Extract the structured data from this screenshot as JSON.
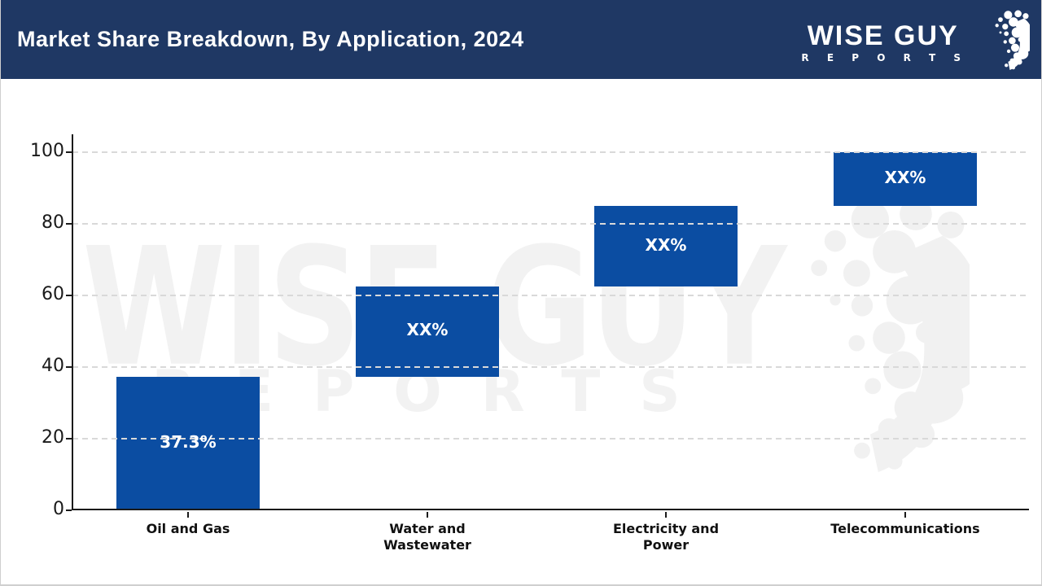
{
  "header": {
    "title": "Market Share Breakdown, By Application, 2024",
    "logo": {
      "primary": "WISE GUY",
      "secondary": "R E P O R T S"
    }
  },
  "watermark": {
    "line1": "WISE GUY",
    "line2": "REPORTS"
  },
  "chart_data": {
    "type": "bar",
    "subtype": "waterfall",
    "title": "Market Share Breakdown, By Application, 2024",
    "categories": [
      [
        "Oil and Gas"
      ],
      [
        "Water and",
        "Wastewater"
      ],
      [
        "Electricity and",
        "Power"
      ],
      [
        "Telecommunications"
      ]
    ],
    "series": [
      {
        "name": "Market Share (%)",
        "segments": [
          {
            "category": "Oil and Gas",
            "start": 0,
            "end": 37.3,
            "label": "37.3%"
          },
          {
            "category": "Water and Wastewater",
            "start": 37.3,
            "end": 62.5,
            "label": "XX%"
          },
          {
            "category": "Electricity and Power",
            "start": 62.5,
            "end": 85,
            "label": "XX%"
          },
          {
            "category": "Telecommunications",
            "start": 85,
            "end": 100,
            "label": "XX%"
          }
        ]
      }
    ],
    "ylim": [
      0,
      100
    ],
    "yticks": [
      0,
      20,
      40,
      60,
      80,
      100
    ],
    "xlabel": "",
    "ylabel": "",
    "grid": {
      "horizontal": true,
      "style": "dashed",
      "above_bars": true
    },
    "legend": "none",
    "colors": {
      "bar": "#0b4da2",
      "bar_label": "#ffffff",
      "axis": "#1a1a1a",
      "gridline": "#d9d9d9",
      "header_bg": "#1f3864",
      "watermark": "#f2f2f2"
    }
  }
}
